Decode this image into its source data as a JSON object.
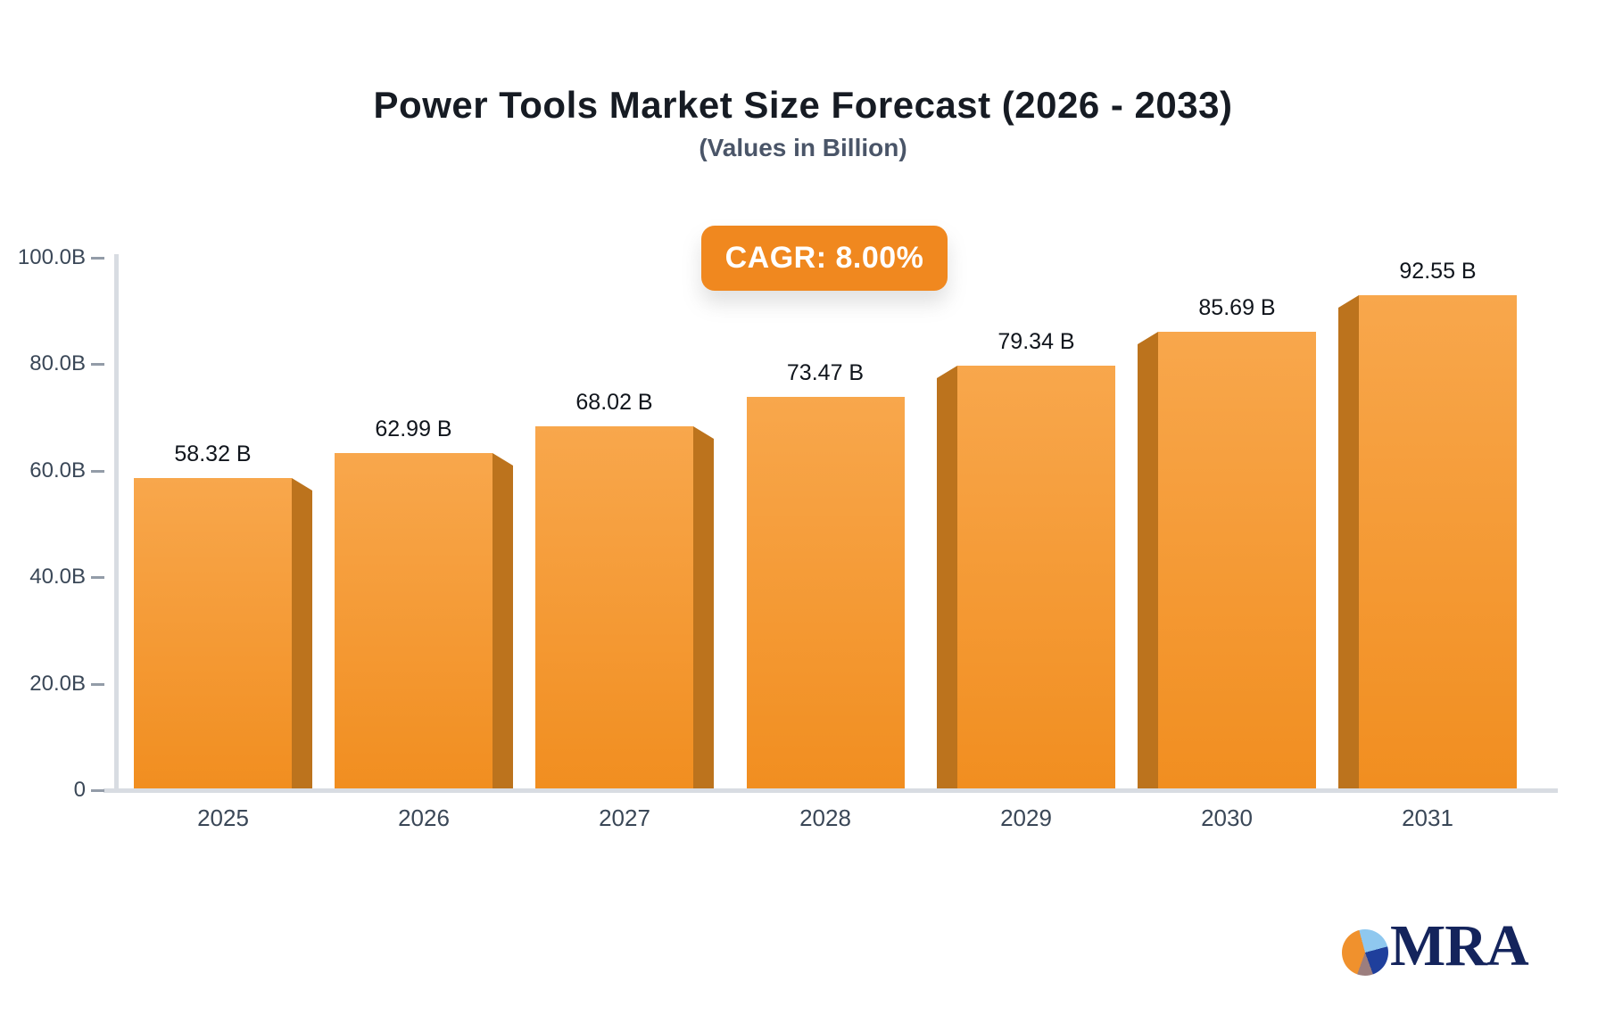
{
  "title": "Power Tools Market Size Forecast (2026 - 2033)",
  "subtitle": "(Values in Billion)",
  "badge": {
    "label": "CAGR: 8.00%",
    "bg_color": "#f0881f",
    "text_color": "#ffffff"
  },
  "chart_data": {
    "type": "bar",
    "categories": [
      "2025",
      "2026",
      "2027",
      "2028",
      "2029",
      "2030",
      "2031"
    ],
    "values": [
      58.32,
      62.99,
      68.02,
      73.47,
      79.34,
      85.69,
      92.55
    ],
    "value_labels": [
      "58.32 B",
      "62.99 B",
      "68.02 B",
      "73.47 B",
      "79.34 B",
      "85.69 B",
      "92.55 B"
    ],
    "y_ticks": [
      {
        "value": 100,
        "label": "100.0B"
      },
      {
        "value": 80,
        "label": "80.0B"
      },
      {
        "value": 60,
        "label": "60.0B"
      },
      {
        "value": 40,
        "label": "40.0B"
      },
      {
        "value": 20,
        "label": "20.0B"
      },
      {
        "value": 0,
        "label": "0"
      }
    ],
    "ylim": [
      0,
      100
    ],
    "grid": false,
    "legend": null,
    "bar_color_top": "#f8a74c",
    "bar_color_bottom": "#f18e20",
    "bar_side_color": "#bc731d",
    "axis_color": "#d8dce2",
    "tick_color": "#939ca8",
    "tick_label_color": "#3a4757",
    "value_label_color": "#10151c"
  },
  "logo": {
    "text": "MRA",
    "text_color": "#14245c",
    "pie_colors": {
      "orange": "#f0912d",
      "light_blue": "#8fc8ef",
      "dark_blue": "#1f3f9c",
      "mauve": "#9c7e7e"
    }
  }
}
